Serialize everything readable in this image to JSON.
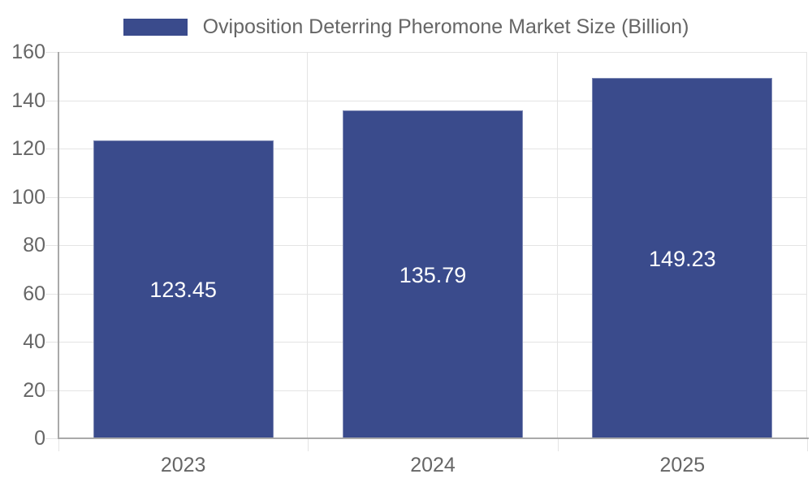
{
  "chart_data": {
    "type": "bar",
    "title": "Oviposition Deterring Pheromone Market Size (Billion)",
    "legend": {
      "position": "top",
      "entries": [
        "Oviposition Deterring Pheromone Market Size (Billion)"
      ]
    },
    "categories": [
      "2023",
      "2024",
      "2025"
    ],
    "series": [
      {
        "name": "Oviposition Deterring Pheromone Market Size (Billion)",
        "values": [
          123.45,
          135.79,
          149.23
        ],
        "value_labels": [
          "123.45",
          "135.79",
          "149.23"
        ]
      }
    ],
    "xlabel": "",
    "ylabel": "",
    "ylim": [
      0,
      160
    ],
    "ytick_interval": 20,
    "ytick_labels": [
      "0",
      "20",
      "40",
      "60",
      "80",
      "100",
      "120",
      "140",
      "160"
    ],
    "grid": true,
    "colors": {
      "bar_fill": "#3A4B8C",
      "bar_value_text": "#FFFFFF",
      "grid_line": "#E4E4E4",
      "axis_line": "#A9A9A9",
      "tick_text": "#666666",
      "legend_text": "#666666",
      "background": "#FFFFFF"
    }
  }
}
